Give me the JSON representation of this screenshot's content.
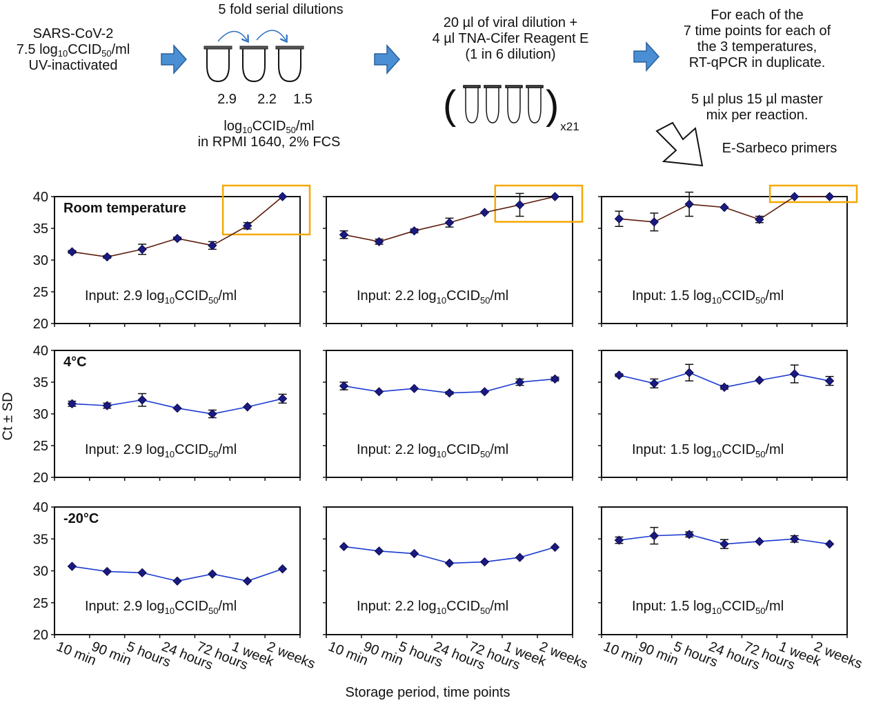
{
  "workflow": {
    "source": {
      "line1": "SARS-CoV-2",
      "line2_prefix": "7.5 log",
      "line2_sub1": "10",
      "line2_mid": "CCID",
      "line2_sub2": "50",
      "line2_suffix": "/ml",
      "line3": "UV-inactivated"
    },
    "dilution": {
      "title": "5 fold serial dilutions",
      "values": [
        "2.9",
        "2.2",
        "1.5"
      ],
      "unit_prefix": "log",
      "unit_sub1": "10",
      "unit_mid": "CCID",
      "unit_sub2": "50",
      "unit_suffix": "/ml",
      "medium": "in RPMI 1640, 2% FCS"
    },
    "reagent": {
      "line1": "20 µl of viral dilution +",
      "line2": "4 µl TNA-Cifer Reagent E",
      "line3": "(1 in 6 dilution)",
      "multiplier": "x21"
    },
    "pcr": {
      "line1": "For each of the",
      "line2": "7 time points for each of",
      "line3": "the 3 temperatures,",
      "line4": "RT-qPCR in duplicate.",
      "line5": "5 µl plus 15 µl master",
      "line6": "mix per reaction.",
      "primers": "E-Sarbeco primers"
    },
    "colors": {
      "arrow_fill": "#4a8fd4",
      "arrow_stroke": "#2a5e9a",
      "curve": "#2a6fc0"
    }
  },
  "chart_data": {
    "type": "line",
    "ylabel": "Ct ± SD",
    "xlabel": "Storage period, time points",
    "ylim": [
      20,
      40
    ],
    "yticks": [
      20,
      25,
      30,
      35,
      40
    ],
    "categories": [
      "10 min",
      "90 min",
      "5 hours",
      "24 hours",
      "72 hours",
      "1 week",
      "2 weeks"
    ],
    "input_prefix": "Input: ",
    "input_unit": {
      "prefix": " log",
      "sub1": "10",
      "mid": "CCID",
      "sub2": "50",
      "suffix": "/ml"
    },
    "colors": {
      "marker": "#1a1a80",
      "room_line": "#5a1a0a",
      "cold_line": "#1a3ad0",
      "highlight": "#f5a800",
      "error_bar": "#111111"
    },
    "rows": [
      {
        "condition": "Room temperature",
        "panels": [
          {
            "input": "2.9",
            "values": [
              31.3,
              30.5,
              31.7,
              33.4,
              32.3,
              35.4,
              40.0
            ],
            "sd": [
              0.2,
              0.2,
              0.8,
              0.2,
              0.6,
              0.5,
              0.0
            ],
            "highlight": [
              5,
              6
            ]
          },
          {
            "input": "2.2",
            "values": [
              34.0,
              32.9,
              34.6,
              35.9,
              37.5,
              38.7,
              40.0
            ],
            "sd": [
              0.6,
              0.4,
              0.3,
              0.7,
              0.0,
              1.8,
              0.0
            ],
            "highlight": [
              5,
              6
            ]
          },
          {
            "input": "1.5",
            "values": [
              36.5,
              36.0,
              38.8,
              38.3,
              36.4,
              40.0,
              40.0
            ],
            "sd": [
              1.2,
              1.4,
              1.9,
              0.0,
              0.5,
              0.0,
              0.0
            ],
            "highlight": [
              5,
              6
            ]
          }
        ]
      },
      {
        "condition": "4°C",
        "panels": [
          {
            "input": "2.9",
            "values": [
              31.6,
              31.3,
              32.2,
              30.9,
              30.0,
              31.1,
              32.4
            ],
            "sd": [
              0.4,
              0.4,
              1.0,
              0.0,
              0.6,
              0.0,
              0.7
            ],
            "highlight": []
          },
          {
            "input": "2.2",
            "values": [
              34.4,
              33.5,
              34.0,
              33.3,
              33.5,
              35.0,
              35.5
            ],
            "sd": [
              0.6,
              0.0,
              0.0,
              0.2,
              0.0,
              0.5,
              0.3
            ],
            "highlight": []
          },
          {
            "input": "1.5",
            "values": [
              36.1,
              34.8,
              36.5,
              34.2,
              35.3,
              36.3,
              35.2
            ],
            "sd": [
              0.2,
              0.7,
              1.3,
              0.3,
              0.0,
              1.4,
              0.7
            ],
            "highlight": []
          }
        ]
      },
      {
        "condition": "-20°C",
        "panels": [
          {
            "input": "2.9",
            "values": [
              30.7,
              29.9,
              29.7,
              28.4,
              29.5,
              28.4,
              30.3
            ],
            "sd": [
              0,
              0,
              0,
              0,
              0,
              0,
              0
            ],
            "highlight": []
          },
          {
            "input": "2.2",
            "values": [
              33.8,
              33.1,
              32.7,
              31.2,
              31.4,
              32.1,
              33.7
            ],
            "sd": [
              0,
              0,
              0,
              0,
              0,
              0,
              0
            ],
            "highlight": []
          },
          {
            "input": "1.5",
            "values": [
              34.8,
              35.5,
              35.7,
              34.2,
              34.6,
              35.0,
              34.2
            ],
            "sd": [
              0.5,
              1.3,
              0.4,
              0.7,
              0.0,
              0.5,
              0.0
            ],
            "highlight": []
          }
        ]
      }
    ]
  }
}
